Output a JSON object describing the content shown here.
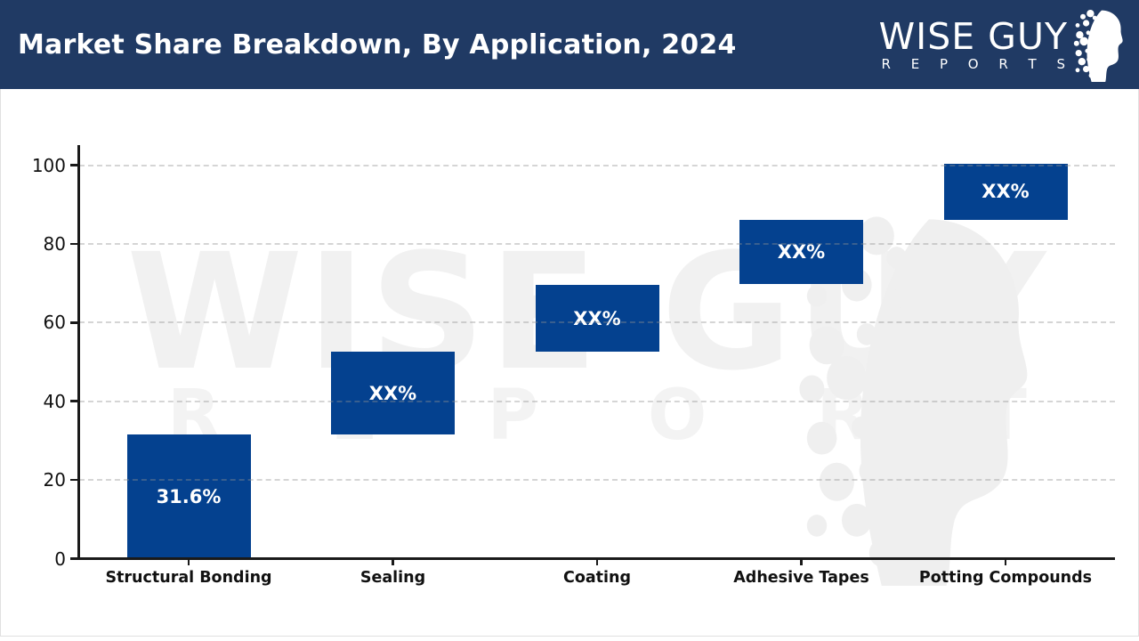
{
  "header": {
    "title": "Market Share Breakdown, By Application, 2024",
    "bg_color": "#203a64",
    "logo": {
      "line1": "WISE GUY",
      "line2": "R E P O R T S"
    }
  },
  "watermark": {
    "line1": "WISE GUY",
    "line2": "R E P O R T S"
  },
  "chart_data": {
    "type": "bar",
    "subtype": "waterfall",
    "title": "Market Share Breakdown, By Application, 2024",
    "categories": [
      "Structural Bonding",
      "Sealing",
      "Coating",
      "Adhesive Tapes",
      "Potting Compounds"
    ],
    "segments": [
      {
        "category": "Structural Bonding",
        "start": 0,
        "end": 31.6,
        "label": "31.6%"
      },
      {
        "category": "Sealing",
        "start": 31.6,
        "end": 52.5,
        "label": "XX%"
      },
      {
        "category": "Coating",
        "start": 52.5,
        "end": 69.5,
        "label": "XX%"
      },
      {
        "category": "Adhesive Tapes",
        "start": 69.8,
        "end": 86.1,
        "label": "XX%"
      },
      {
        "category": "Potting Compounds",
        "start": 86.1,
        "end": 100.4,
        "label": "XX%"
      }
    ],
    "y_ticks": [
      0,
      20,
      40,
      60,
      80,
      100
    ],
    "ylim": [
      0,
      105
    ],
    "xlabel": "",
    "ylabel": "",
    "grid": "horizontal dashed",
    "legend": "none",
    "bar_color": "#04418f",
    "bar_label_color": "#ffffff",
    "axis_color": "#1a1a1a",
    "grid_color": "#cfcfcf"
  }
}
